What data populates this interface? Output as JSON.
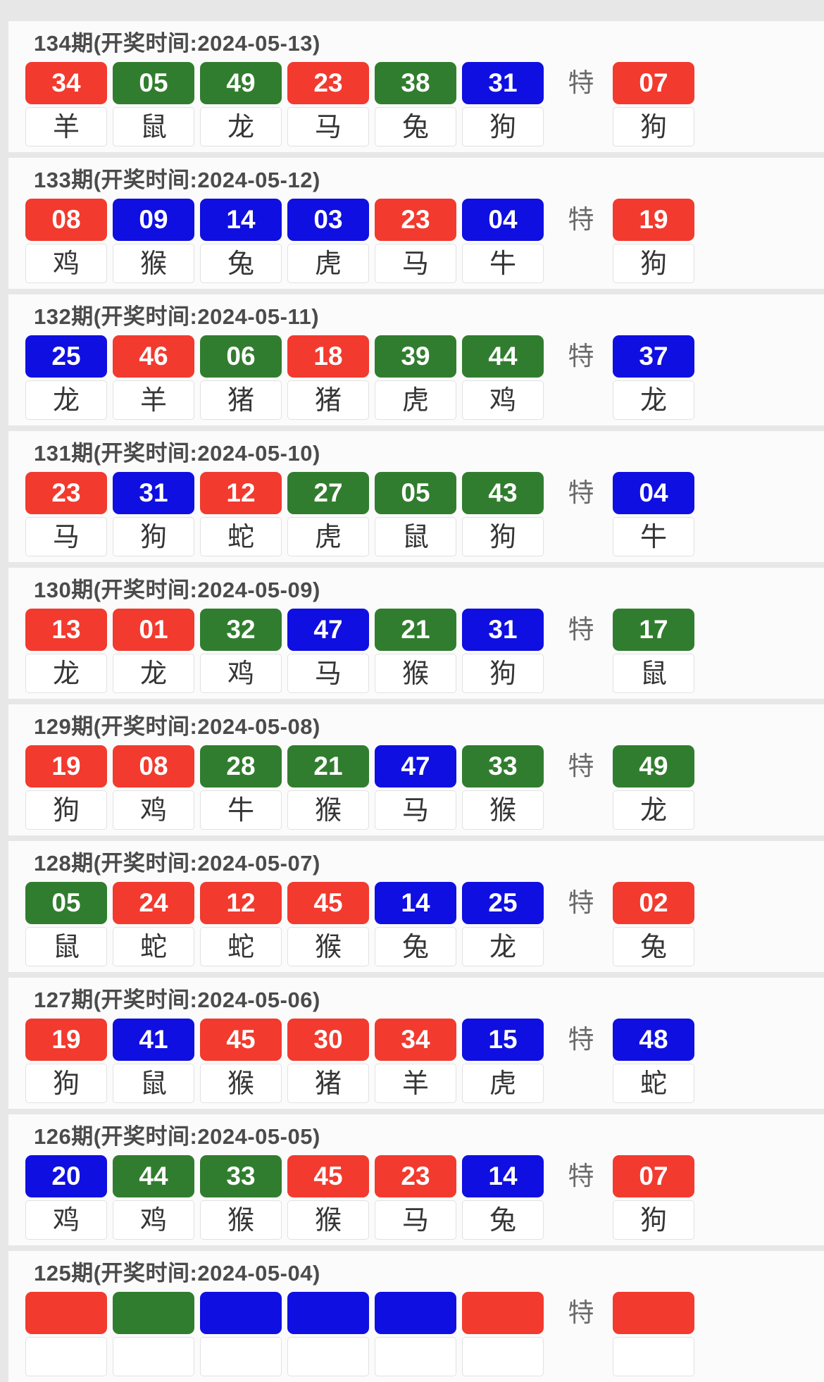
{
  "page": {
    "special_label": "特",
    "ball_colors": {
      "red": "#f23a2e",
      "green": "#317d2f",
      "blue": "#0f0fe1"
    }
  },
  "draws": [
    {
      "title": "134期(开奖时间:2024-05-13)",
      "balls": [
        {
          "num": "34",
          "color": "red",
          "zodiac": "羊"
        },
        {
          "num": "05",
          "color": "green",
          "zodiac": "鼠"
        },
        {
          "num": "49",
          "color": "green",
          "zodiac": "龙"
        },
        {
          "num": "23",
          "color": "red",
          "zodiac": "马"
        },
        {
          "num": "38",
          "color": "green",
          "zodiac": "兔"
        },
        {
          "num": "31",
          "color": "blue",
          "zodiac": "狗"
        }
      ],
      "special": {
        "num": "07",
        "color": "red",
        "zodiac": "狗"
      }
    },
    {
      "title": "133期(开奖时间:2024-05-12)",
      "balls": [
        {
          "num": "08",
          "color": "red",
          "zodiac": "鸡"
        },
        {
          "num": "09",
          "color": "blue",
          "zodiac": "猴"
        },
        {
          "num": "14",
          "color": "blue",
          "zodiac": "兔"
        },
        {
          "num": "03",
          "color": "blue",
          "zodiac": "虎"
        },
        {
          "num": "23",
          "color": "red",
          "zodiac": "马"
        },
        {
          "num": "04",
          "color": "blue",
          "zodiac": "牛"
        }
      ],
      "special": {
        "num": "19",
        "color": "red",
        "zodiac": "狗"
      }
    },
    {
      "title": "132期(开奖时间:2024-05-11)",
      "balls": [
        {
          "num": "25",
          "color": "blue",
          "zodiac": "龙"
        },
        {
          "num": "46",
          "color": "red",
          "zodiac": "羊"
        },
        {
          "num": "06",
          "color": "green",
          "zodiac": "猪"
        },
        {
          "num": "18",
          "color": "red",
          "zodiac": "猪"
        },
        {
          "num": "39",
          "color": "green",
          "zodiac": "虎"
        },
        {
          "num": "44",
          "color": "green",
          "zodiac": "鸡"
        }
      ],
      "special": {
        "num": "37",
        "color": "blue",
        "zodiac": "龙"
      }
    },
    {
      "title": "131期(开奖时间:2024-05-10)",
      "balls": [
        {
          "num": "23",
          "color": "red",
          "zodiac": "马"
        },
        {
          "num": "31",
          "color": "blue",
          "zodiac": "狗"
        },
        {
          "num": "12",
          "color": "red",
          "zodiac": "蛇"
        },
        {
          "num": "27",
          "color": "green",
          "zodiac": "虎"
        },
        {
          "num": "05",
          "color": "green",
          "zodiac": "鼠"
        },
        {
          "num": "43",
          "color": "green",
          "zodiac": "狗"
        }
      ],
      "special": {
        "num": "04",
        "color": "blue",
        "zodiac": "牛"
      }
    },
    {
      "title": "130期(开奖时间:2024-05-09)",
      "balls": [
        {
          "num": "13",
          "color": "red",
          "zodiac": "龙"
        },
        {
          "num": "01",
          "color": "red",
          "zodiac": "龙"
        },
        {
          "num": "32",
          "color": "green",
          "zodiac": "鸡"
        },
        {
          "num": "47",
          "color": "blue",
          "zodiac": "马"
        },
        {
          "num": "21",
          "color": "green",
          "zodiac": "猴"
        },
        {
          "num": "31",
          "color": "blue",
          "zodiac": "狗"
        }
      ],
      "special": {
        "num": "17",
        "color": "green",
        "zodiac": "鼠"
      }
    },
    {
      "title": "129期(开奖时间:2024-05-08)",
      "balls": [
        {
          "num": "19",
          "color": "red",
          "zodiac": "狗"
        },
        {
          "num": "08",
          "color": "red",
          "zodiac": "鸡"
        },
        {
          "num": "28",
          "color": "green",
          "zodiac": "牛"
        },
        {
          "num": "21",
          "color": "green",
          "zodiac": "猴"
        },
        {
          "num": "47",
          "color": "blue",
          "zodiac": "马"
        },
        {
          "num": "33",
          "color": "green",
          "zodiac": "猴"
        }
      ],
      "special": {
        "num": "49",
        "color": "green",
        "zodiac": "龙"
      }
    },
    {
      "title": "128期(开奖时间:2024-05-07)",
      "balls": [
        {
          "num": "05",
          "color": "green",
          "zodiac": "鼠"
        },
        {
          "num": "24",
          "color": "red",
          "zodiac": "蛇"
        },
        {
          "num": "12",
          "color": "red",
          "zodiac": "蛇"
        },
        {
          "num": "45",
          "color": "red",
          "zodiac": "猴"
        },
        {
          "num": "14",
          "color": "blue",
          "zodiac": "兔"
        },
        {
          "num": "25",
          "color": "blue",
          "zodiac": "龙"
        }
      ],
      "special": {
        "num": "02",
        "color": "red",
        "zodiac": "兔"
      }
    },
    {
      "title": "127期(开奖时间:2024-05-06)",
      "balls": [
        {
          "num": "19",
          "color": "red",
          "zodiac": "狗"
        },
        {
          "num": "41",
          "color": "blue",
          "zodiac": "鼠"
        },
        {
          "num": "45",
          "color": "red",
          "zodiac": "猴"
        },
        {
          "num": "30",
          "color": "red",
          "zodiac": "猪"
        },
        {
          "num": "34",
          "color": "red",
          "zodiac": "羊"
        },
        {
          "num": "15",
          "color": "blue",
          "zodiac": "虎"
        }
      ],
      "special": {
        "num": "48",
        "color": "blue",
        "zodiac": "蛇"
      }
    },
    {
      "title": "126期(开奖时间:2024-05-05)",
      "balls": [
        {
          "num": "20",
          "color": "blue",
          "zodiac": "鸡"
        },
        {
          "num": "44",
          "color": "green",
          "zodiac": "鸡"
        },
        {
          "num": "33",
          "color": "green",
          "zodiac": "猴"
        },
        {
          "num": "45",
          "color": "red",
          "zodiac": "猴"
        },
        {
          "num": "23",
          "color": "red",
          "zodiac": "马"
        },
        {
          "num": "14",
          "color": "blue",
          "zodiac": "兔"
        }
      ],
      "special": {
        "num": "07",
        "color": "red",
        "zodiac": "狗"
      }
    },
    {
      "title": "125期(开奖时间:2024-05-04)",
      "balls": [
        {
          "num": "",
          "color": "red",
          "zodiac": ""
        },
        {
          "num": "",
          "color": "green",
          "zodiac": ""
        },
        {
          "num": "",
          "color": "blue",
          "zodiac": ""
        },
        {
          "num": "",
          "color": "blue",
          "zodiac": ""
        },
        {
          "num": "",
          "color": "blue",
          "zodiac": ""
        },
        {
          "num": "",
          "color": "red",
          "zodiac": ""
        }
      ],
      "special": {
        "num": "",
        "color": "red",
        "zodiac": ""
      }
    }
  ]
}
